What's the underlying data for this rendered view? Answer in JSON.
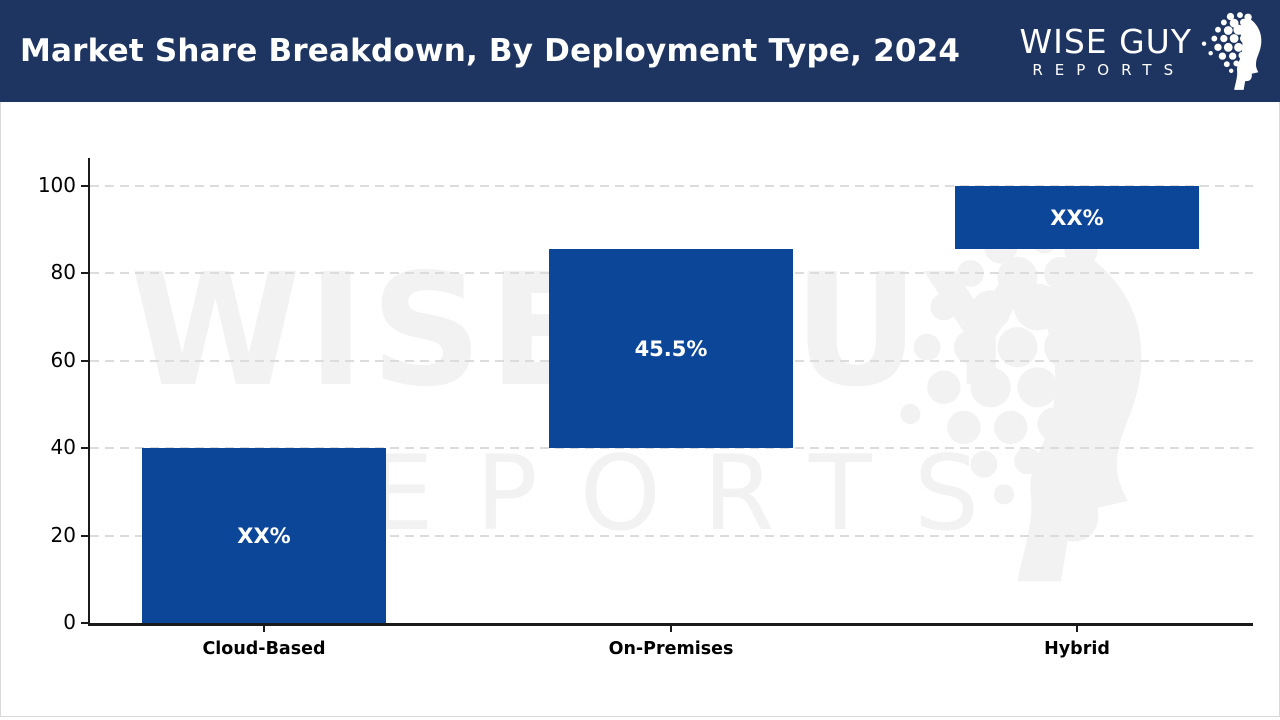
{
  "header": {
    "title": "Market Share Breakdown, By Deployment Type, 2024",
    "logo": {
      "name": "WISE GUY",
      "sub": "REPORTS"
    }
  },
  "watermark": {
    "line1": "WISE GUY",
    "line2": "REPORTS"
  },
  "chart_data": {
    "type": "bar",
    "subtype": "stacked-waterfall",
    "title": "Market Share Breakdown, By Deployment Type, 2024",
    "categories": [
      "Cloud-Based",
      "On-Premises",
      "Hybrid"
    ],
    "bars": [
      {
        "category": "Cloud-Based",
        "start": 0,
        "end": 40,
        "height": 40,
        "label": "XX%"
      },
      {
        "category": "On-Premises",
        "start": 40,
        "end": 85.5,
        "height": 45.5,
        "label": "45.5%"
      },
      {
        "category": "Hybrid",
        "start": 85.5,
        "end": 100,
        "height": 14.5,
        "label": "XX%"
      }
    ],
    "xlabel": "",
    "ylabel": "",
    "ylim": [
      0,
      100
    ],
    "yticks": [
      0,
      20,
      40,
      60,
      80,
      100
    ],
    "grid": "horizontal-dashed",
    "legend": "none",
    "bar_color": "#0c4699",
    "bar_label_color": "#ffffff"
  },
  "colors": {
    "header_bg": "#1e3561",
    "bar": "#0c4699",
    "grid": "#dcdcdc",
    "axis": "#1a1a1a",
    "watermark": "#f2f2f2",
    "frame_border": "#d9d9d9",
    "title_text": "#ffffff"
  }
}
